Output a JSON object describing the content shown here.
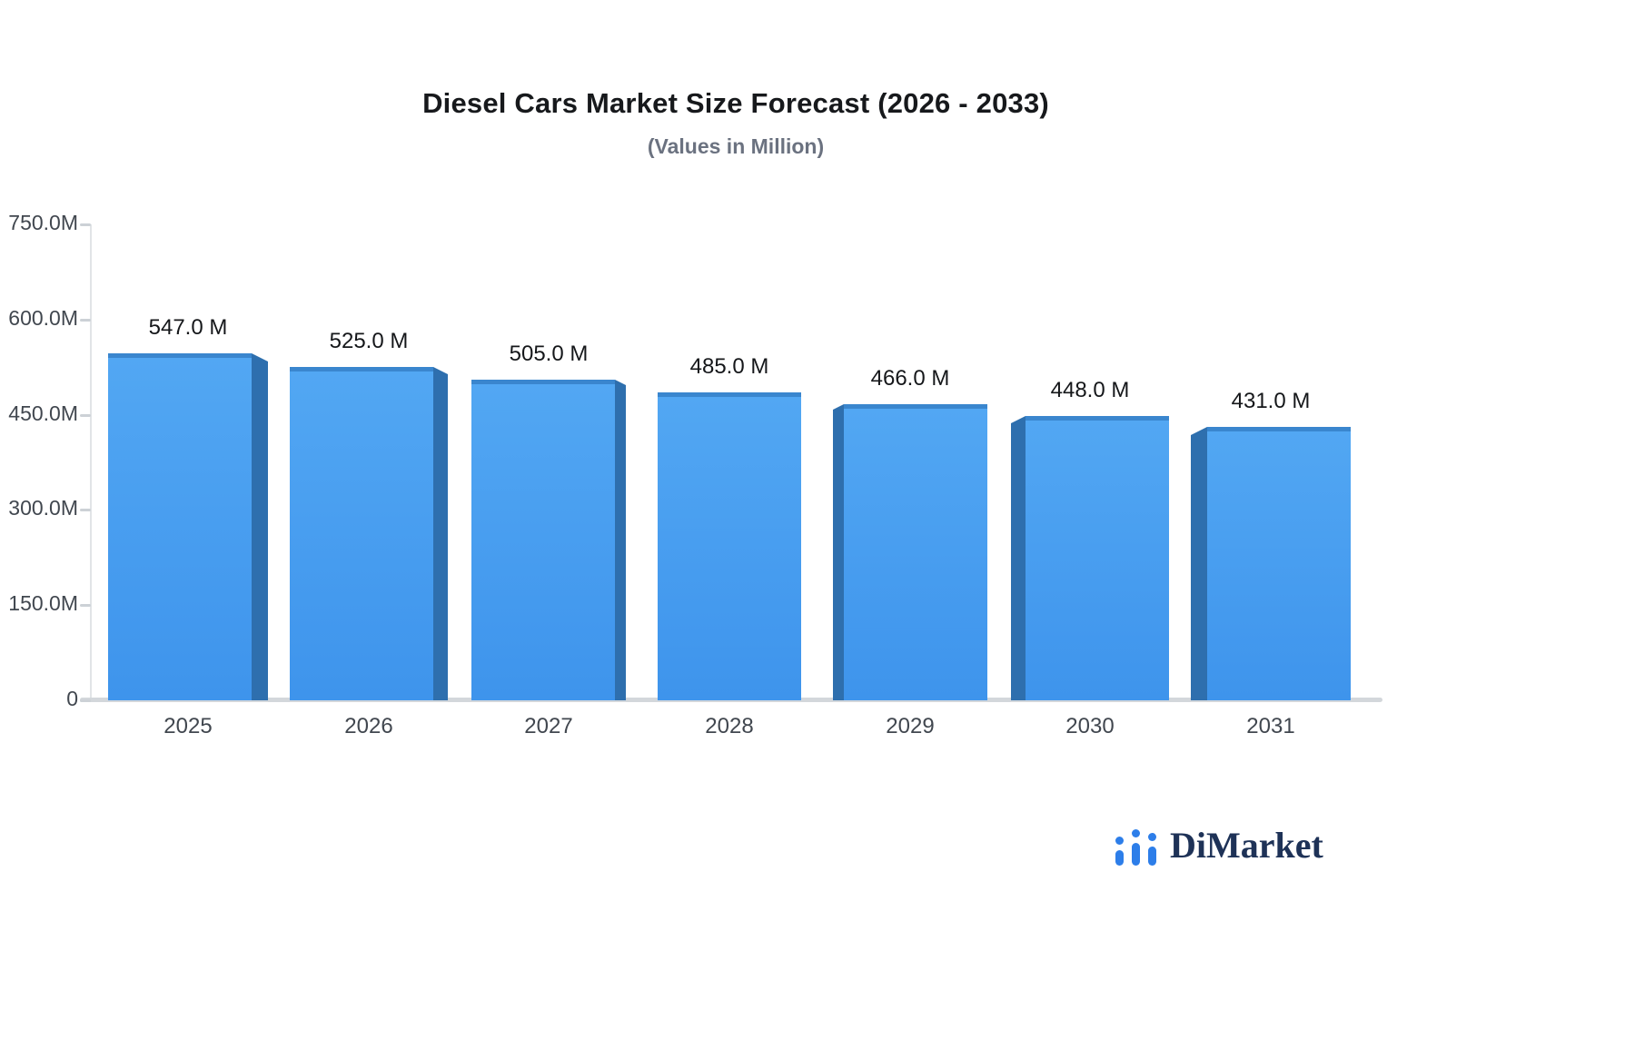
{
  "chart_data": {
    "type": "bar",
    "title": "Diesel Cars Market Size Forecast (2026 - 2033)",
    "subtitle": "(Values in Million)",
    "categories": [
      "2025",
      "2026",
      "2027",
      "2028",
      "2029",
      "2030",
      "2031"
    ],
    "values": [
      547.0,
      525.0,
      505.0,
      485.0,
      466.0,
      448.0,
      431.0
    ],
    "value_labels": [
      "547.0 M",
      "525.0 M",
      "505.0 M",
      "485.0 M",
      "466.0 M",
      "448.0 M",
      "431.0 M"
    ],
    "unit": "Million",
    "xlabel": "",
    "ylabel": "",
    "ylim": [
      0,
      750
    ],
    "yticks": [
      {
        "value": 0,
        "label": "0"
      },
      {
        "value": 150,
        "label": "150.0M"
      },
      {
        "value": 300,
        "label": "300.0M"
      },
      {
        "value": 450,
        "label": "450.0M"
      },
      {
        "value": 600,
        "label": "600.0M"
      },
      {
        "value": 750,
        "label": "750.0M"
      }
    ],
    "grid": false,
    "legend": false,
    "colors": {
      "bar_face_top": "#52a7f3",
      "bar_face_bottom": "#3e94ec",
      "bar_top_edge": "#3a86ce",
      "bar_side": "#2e6fae",
      "axis_line": "#e1e4e7",
      "baseline": "#d3d7db",
      "tick": "#ccd1d6",
      "title_text": "#17191c",
      "subtitle_text": "#6b7280",
      "axis_text": "#41474f",
      "value_text": "#15171a"
    }
  },
  "logo": {
    "text": "DiMarket",
    "icon": "mini-bar-chart-icon",
    "icon_color": "#2d7ee9",
    "text_color": "#1e3257"
  }
}
